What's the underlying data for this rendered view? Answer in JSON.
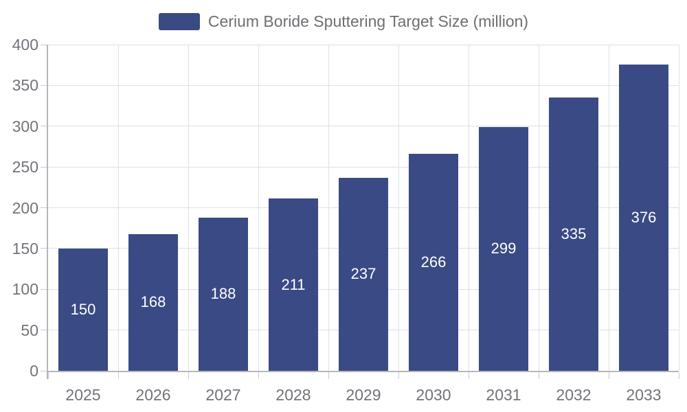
{
  "chart_data": {
    "type": "bar",
    "title": "Cerium Boride Sputtering Target Size (million)",
    "categories": [
      "2025",
      "2026",
      "2027",
      "2028",
      "2029",
      "2030",
      "2031",
      "2032",
      "2033"
    ],
    "series": [
      {
        "name": "Cerium Boride Sputtering Target Size (million)",
        "values": [
          150,
          168,
          188,
          211,
          237,
          266,
          299,
          335,
          376
        ]
      }
    ],
    "xlabel": "",
    "ylabel": "",
    "ylim": [
      0,
      400
    ],
    "ytick_interval": 50,
    "ytick_labels": [
      "0",
      "50",
      "100",
      "150",
      "200",
      "250",
      "300",
      "350",
      "400"
    ],
    "grid": true,
    "legend_position": "top-center",
    "bar_label_position": "inside-center",
    "colors": {
      "bar": "#3A4A84",
      "grid_line": "#E0E0E6",
      "axis_line": "#B4B6BC",
      "tick": "#C9CBD1",
      "tick_label": "#727379",
      "legend_text": "#6E6E73",
      "bar_label": "#FFFFFF",
      "background": "#FFFFFF"
    }
  }
}
